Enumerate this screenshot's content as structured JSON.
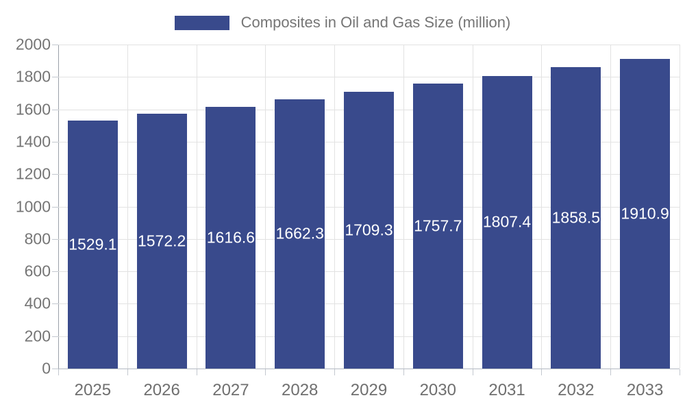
{
  "legend": {
    "label": "Composites in Oil and Gas Size (million)",
    "swatch_color": "#394A8C"
  },
  "chart_data": {
    "type": "bar",
    "title": "Composites in Oil and Gas Size (million)",
    "series_name": "Composites in Oil and Gas Size (million)",
    "categories": [
      "2025",
      "2026",
      "2027",
      "2028",
      "2029",
      "2030",
      "2031",
      "2032",
      "2033"
    ],
    "values": [
      1529.1,
      1572.2,
      1616.6,
      1662.3,
      1709.3,
      1757.7,
      1807.4,
      1858.5,
      1910.9
    ],
    "value_labels": [
      "1529.1",
      "1572.2",
      "1616.6",
      "1662.3",
      "1709.3",
      "1757.7",
      "1807.4",
      "1858.5",
      "1910.9"
    ],
    "xlabel": "",
    "ylabel": "",
    "ylim": [
      0,
      2000
    ],
    "ytick_step": 200,
    "ytick_labels": [
      "0",
      "200",
      "400",
      "600",
      "800",
      "1000",
      "1200",
      "1400",
      "1600",
      "1800",
      "2000"
    ],
    "grid": true,
    "legend_position": "top-center",
    "bar_color": "#394A8C",
    "bar_label_color": "#ffffff",
    "axis_text_color": "#757575",
    "grid_color": "#e2e2e2"
  }
}
